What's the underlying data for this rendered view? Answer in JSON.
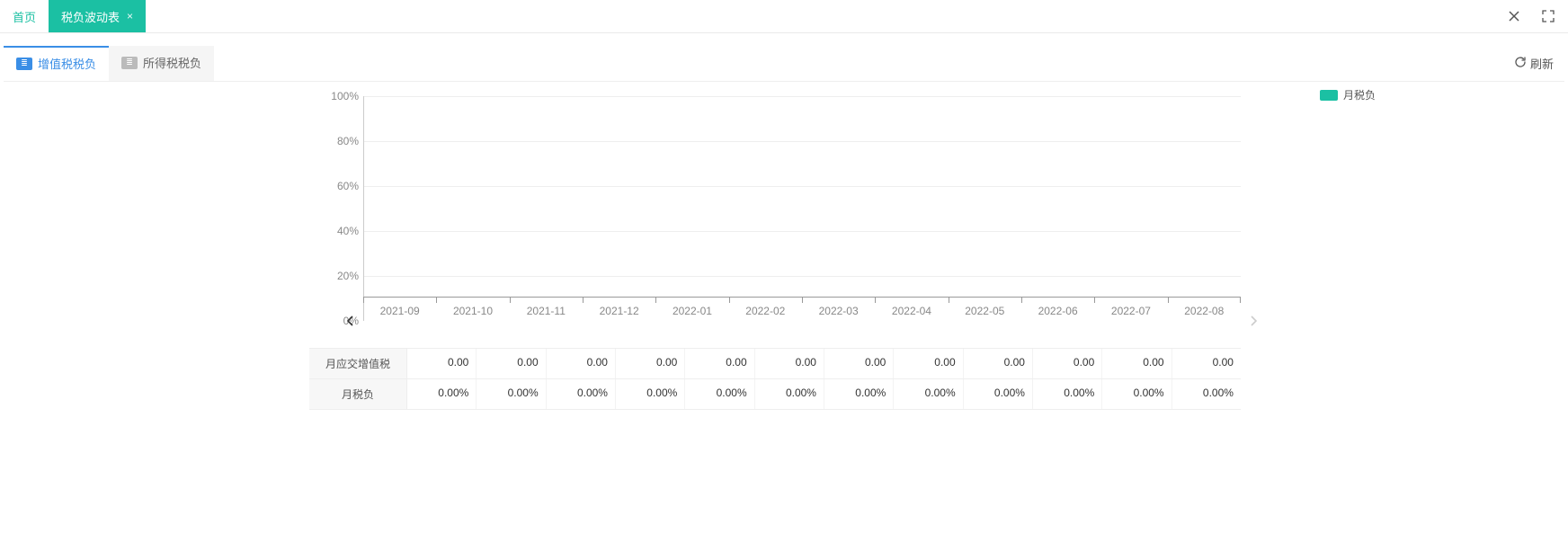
{
  "tabstrip": {
    "home_label": "首页",
    "active_tab_label": "税负波动表"
  },
  "subtabs": {
    "items": [
      {
        "label": "增值税税负",
        "active": true
      },
      {
        "label": "所得税税负",
        "active": false
      }
    ]
  },
  "toolbar": {
    "refresh_label": "刷新"
  },
  "legend": {
    "label": "月税负",
    "color": "#1bc0a3"
  },
  "chart": {
    "type": "bar",
    "y_ticks": [
      "100%",
      "80%",
      "60%",
      "40%",
      "20%",
      "0%"
    ],
    "ylim": [
      0,
      100
    ],
    "x_categories": [
      "2021-09",
      "2021-10",
      "2021-11",
      "2021-12",
      "2022-01",
      "2022-02",
      "2022-03",
      "2022-04",
      "2022-05",
      "2022-06",
      "2022-07",
      "2022-08"
    ],
    "series": [
      {
        "name": "月税负",
        "color": "#1bc0a3",
        "values": [
          0,
          0,
          0,
          0,
          0,
          0,
          0,
          0,
          0,
          0,
          0,
          0
        ]
      }
    ],
    "grid_color": "#eeeeee",
    "axis_color": "#999999",
    "label_color": "#888888",
    "background_color": "#ffffff"
  },
  "table": {
    "rows": [
      {
        "head": "月应交增值税",
        "cells": [
          "0.00",
          "0.00",
          "0.00",
          "0.00",
          "0.00",
          "0.00",
          "0.00",
          "0.00",
          "0.00",
          "0.00",
          "0.00",
          "0.00"
        ]
      },
      {
        "head": "月税负",
        "cells": [
          "0.00%",
          "0.00%",
          "0.00%",
          "0.00%",
          "0.00%",
          "0.00%",
          "0.00%",
          "0.00%",
          "0.00%",
          "0.00%",
          "0.00%",
          "0.00%"
        ]
      }
    ]
  }
}
